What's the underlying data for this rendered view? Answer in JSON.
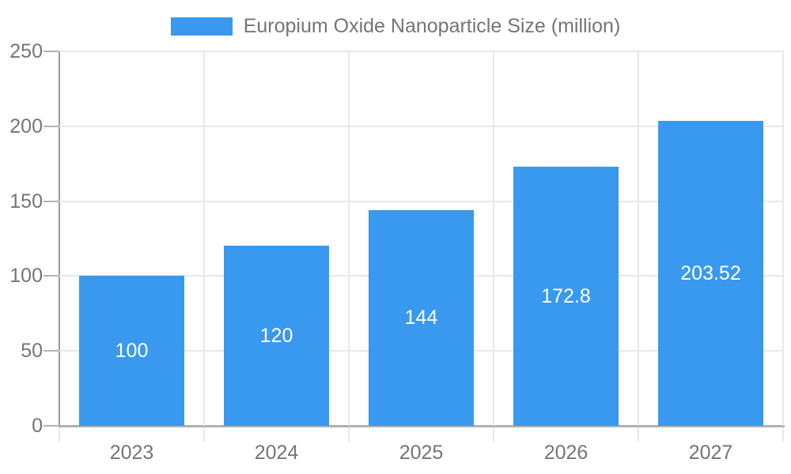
{
  "legend": {
    "label": "Europium Oxide Nanoparticle Size (million)"
  },
  "chart_data": {
    "type": "bar",
    "title": "Europium Oxide Nanoparticle Size (million)",
    "categories": [
      "2023",
      "2024",
      "2025",
      "2026",
      "2027"
    ],
    "values": [
      100,
      120,
      144,
      172.8,
      203.52
    ],
    "value_labels": [
      "100",
      "120",
      "144",
      "172.8",
      "203.52"
    ],
    "xlabel": "",
    "ylabel": "",
    "ylim": [
      0,
      250
    ],
    "yticks": [
      0,
      50,
      100,
      150,
      200,
      250
    ],
    "ytick_labels": [
      "0",
      "50",
      "100",
      "150",
      "200",
      "250"
    ],
    "grid": true,
    "legend_position": "top",
    "bar_value_labels_inside": true
  },
  "colors": {
    "bar": "#3999ee",
    "axis_text": "#757575",
    "bar_label_text": "#ffffff",
    "gridline": "#e8e8e8",
    "y_axis_line": "#9a9a9a",
    "x_axis_line": "#b0b0b0",
    "tick": "#b3b3b3",
    "background": "#ffffff"
  }
}
